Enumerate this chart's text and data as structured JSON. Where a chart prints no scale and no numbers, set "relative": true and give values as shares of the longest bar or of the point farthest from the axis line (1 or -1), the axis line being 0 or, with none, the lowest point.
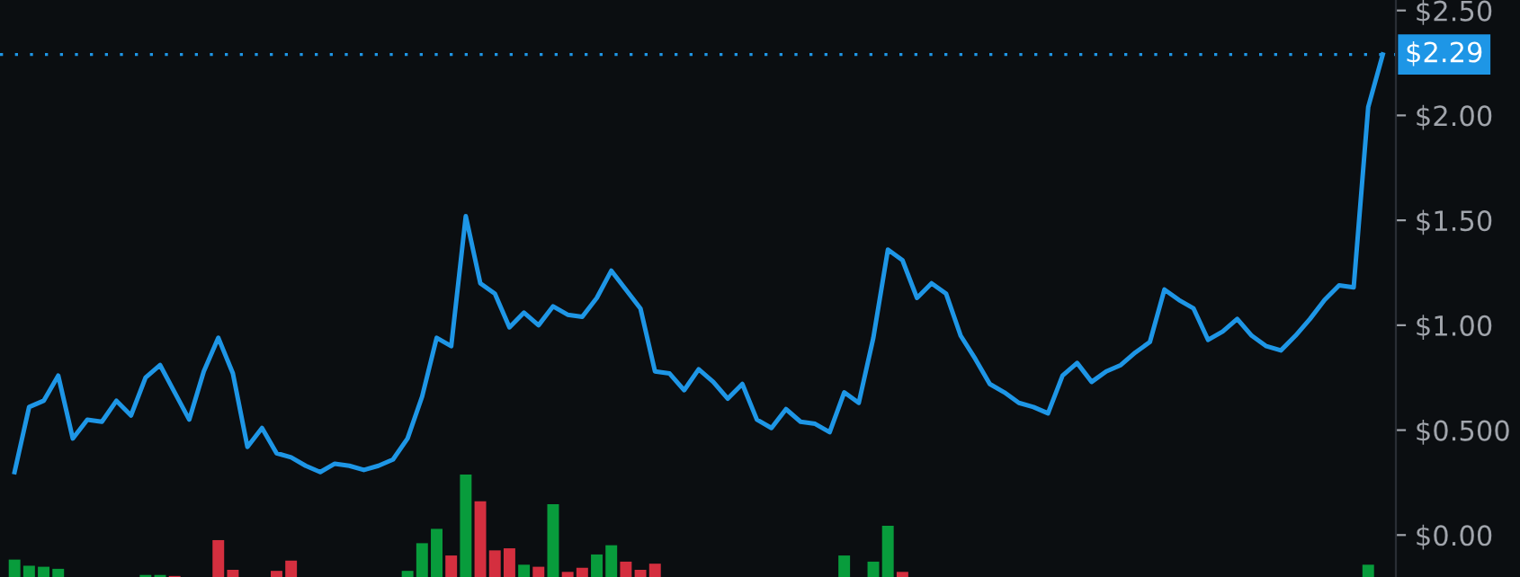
{
  "chart_data": [
    {
      "type": "line",
      "categories": [
        null,
        null,
        null,
        null,
        null,
        null,
        null,
        null,
        null,
        null,
        null,
        null,
        null,
        null,
        null,
        null,
        null,
        null,
        null,
        null,
        null,
        null,
        null,
        null,
        null,
        null,
        null,
        null,
        null,
        null,
        null,
        null,
        null,
        null,
        null,
        null,
        null,
        null,
        null,
        null,
        null,
        null,
        null,
        null,
        null,
        null,
        null,
        null,
        null,
        null,
        null,
        null,
        null,
        null,
        null,
        null,
        null,
        null,
        null,
        null,
        null,
        null,
        null,
        null,
        null,
        null,
        null,
        null,
        null,
        null,
        null,
        null,
        null,
        null,
        null,
        null,
        null,
        null,
        null,
        null,
        null,
        null,
        null,
        null,
        null,
        null,
        null,
        null,
        null,
        null,
        null,
        null,
        null,
        null,
        null
      ],
      "series": [
        {
          "color": "#1e96e6",
          "values": [
            0.3,
            0.61,
            0.64,
            0.76,
            0.46,
            0.55,
            0.54,
            0.64,
            0.57,
            0.75,
            0.81,
            0.68,
            0.55,
            0.78,
            0.94,
            0.77,
            0.42,
            0.51,
            0.39,
            0.37,
            0.33,
            0.3,
            0.34,
            0.33,
            0.31,
            0.33,
            0.36,
            0.46,
            0.66,
            0.94,
            0.9,
            1.52,
            1.2,
            1.15,
            0.99,
            1.06,
            1.0,
            1.09,
            1.05,
            1.04,
            1.13,
            1.26,
            1.17,
            1.08,
            0.78,
            0.77,
            0.69,
            0.79,
            0.73,
            0.65,
            0.72,
            0.55,
            0.51,
            0.6,
            0.54,
            0.53,
            0.49,
            0.68,
            0.63,
            0.94,
            1.36,
            1.31,
            1.13,
            1.2,
            1.15,
            0.95,
            0.84,
            0.72,
            0.68,
            0.63,
            0.61,
            0.58,
            0.76,
            0.82,
            0.73,
            0.78,
            0.81,
            0.87,
            0.92,
            1.17,
            1.12,
            1.08,
            0.93,
            0.97,
            1.03,
            0.95,
            0.9,
            0.88,
            0.95,
            1.03,
            1.12,
            1.19,
            1.18,
            2.04,
            2.29
          ]
        }
      ],
      "ylim": [
        -0.2,
        2.55
      ],
      "yticks": [
        {
          "value": 0,
          "label": "$0.00"
        },
        {
          "value": 0.5,
          "label": "$0.500"
        },
        {
          "value": 1,
          "label": "$1.00"
        },
        {
          "value": 1.5,
          "label": "$1.50"
        },
        {
          "value": 2,
          "label": "$2.00"
        },
        {
          "value": 2.5,
          "label": "$2.50"
        }
      ],
      "ref_lines": [
        {
          "axis": "y",
          "value": 2.29,
          "label": "$2.29",
          "color": "#1e96e6",
          "line_style": "dotted"
        }
      ],
      "tick_labels": "y",
      "grid": false,
      "legend": false,
      "marker": "none",
      "line_style": "solid"
    },
    {
      "type": "bar",
      "relative": true,
      "categories": [
        null,
        null,
        null,
        null,
        null,
        null,
        null,
        null,
        null,
        null,
        null,
        null,
        null,
        null,
        null,
        null,
        null,
        null,
        null,
        null,
        null,
        null,
        null,
        null,
        null,
        null,
        null,
        null,
        null,
        null,
        null,
        null,
        null,
        null,
        null,
        null,
        null,
        null,
        null,
        null,
        null,
        null,
        null,
        null,
        null,
        null,
        null,
        null,
        null,
        null,
        null,
        null,
        null,
        null,
        null,
        null,
        null,
        null,
        null,
        null,
        null,
        null,
        null,
        null,
        null,
        null,
        null,
        null,
        null,
        null,
        null,
        null,
        null,
        null,
        null,
        null,
        null,
        null,
        null,
        null,
        null,
        null,
        null,
        null,
        null,
        null,
        null,
        null,
        null,
        null,
        null,
        null,
        null,
        null,
        null
      ],
      "values": [
        0.17,
        0.11,
        0.1,
        0.08,
        null,
        null,
        null,
        null,
        null,
        0.02,
        0.02,
        0.01,
        null,
        null,
        0.36,
        0.07,
        null,
        null,
        0.06,
        0.16,
        null,
        null,
        null,
        null,
        null,
        null,
        null,
        0.06,
        0.33,
        0.47,
        0.21,
        1,
        0.74,
        0.26,
        0.28,
        0.12,
        0.1,
        0.71,
        0.05,
        0.09,
        0.22,
        0.31,
        0.15,
        0.07,
        0.13,
        null,
        null,
        null,
        null,
        null,
        null,
        null,
        null,
        null,
        null,
        null,
        null,
        0.21,
        null,
        0.15,
        0.5,
        0.05,
        null,
        null,
        null,
        null,
        null,
        null,
        null,
        null,
        null,
        null,
        null,
        null,
        null,
        null,
        null,
        null,
        null,
        null,
        null,
        null,
        null,
        null,
        null,
        null,
        null,
        null,
        null,
        null,
        null,
        null,
        null,
        0.12,
        null
      ],
      "colors": [
        "#089c3c",
        "#089c3c",
        "#089c3c",
        "#089c3c",
        null,
        null,
        null,
        null,
        null,
        "#089c3c",
        "#089c3c",
        "#d42f3f",
        null,
        null,
        "#d42f3f",
        "#d42f3f",
        null,
        null,
        "#d42f3f",
        "#d42f3f",
        null,
        null,
        null,
        null,
        null,
        null,
        null,
        "#089c3c",
        "#089c3c",
        "#089c3c",
        "#d42f3f",
        "#089c3c",
        "#d42f3f",
        "#d42f3f",
        "#d42f3f",
        "#089c3c",
        "#d42f3f",
        "#089c3c",
        "#d42f3f",
        "#d42f3f",
        "#089c3c",
        "#089c3c",
        "#d42f3f",
        "#d42f3f",
        "#d42f3f",
        null,
        null,
        null,
        null,
        null,
        null,
        null,
        null,
        null,
        null,
        null,
        null,
        "#089c3c",
        null,
        "#089c3c",
        "#089c3c",
        "#d42f3f",
        null,
        null,
        null,
        null,
        null,
        null,
        null,
        null,
        null,
        null,
        null,
        null,
        null,
        null,
        null,
        null,
        null,
        null,
        null,
        null,
        null,
        null,
        null,
        null,
        null,
        null,
        null,
        null,
        null,
        null,
        null,
        "#089c3c",
        null
      ],
      "tick_labels": false,
      "grid": false,
      "legend": false
    }
  ]
}
